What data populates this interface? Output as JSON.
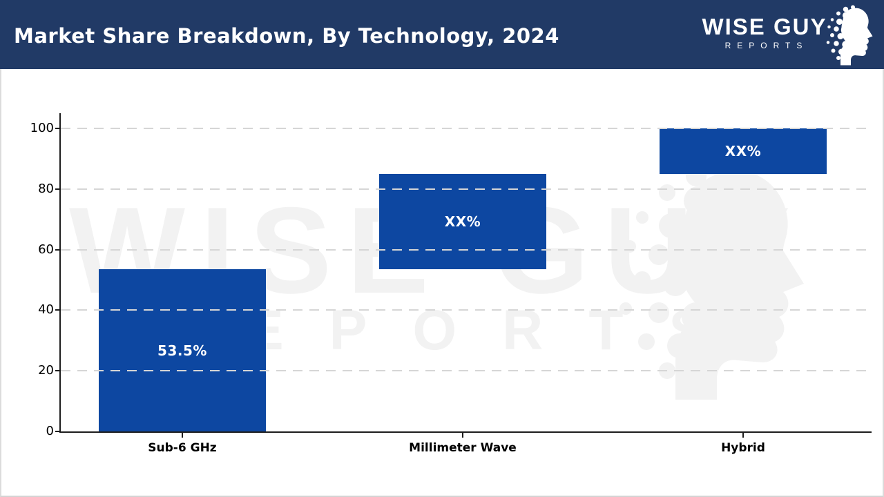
{
  "header": {
    "title": "Market Share Breakdown, By Technology, 2024",
    "logo": {
      "line1": "WISE GUY",
      "line2": "REPORTS"
    }
  },
  "watermark": {
    "line1": "WISE GUY",
    "line2": "REPORTS"
  },
  "chart_data": {
    "type": "bar",
    "subtype": "floating-segment-waterfall",
    "title": "Market Share Breakdown, By Technology, 2024",
    "categories": [
      "Sub-6 GHz",
      "Millimeter Wave",
      "Hybrid"
    ],
    "segments": [
      {
        "category": "Sub-6 GHz",
        "start": 0,
        "end": 53.5,
        "label": "53.5%"
      },
      {
        "category": "Millimeter Wave",
        "start": 53.5,
        "end": 85,
        "label": "XX%"
      },
      {
        "category": "Hybrid",
        "start": 85,
        "end": 100,
        "label": "XX%"
      }
    ],
    "ylim": [
      0,
      100
    ],
    "yticks": [
      0,
      20,
      40,
      60,
      80,
      100
    ],
    "xlabel": "",
    "ylabel": "",
    "grid": "horizontal-dashed",
    "legend": "none",
    "bar_color": "#0d47a1",
    "bar_label_color": "#ffffff"
  },
  "colors": {
    "header_bg": "#213a66",
    "bar": "#0d47a1",
    "grid": "#d6d6d6",
    "axis": "#1c1c1c",
    "background": "#ffffff",
    "watermark": "#f2f2f2"
  }
}
